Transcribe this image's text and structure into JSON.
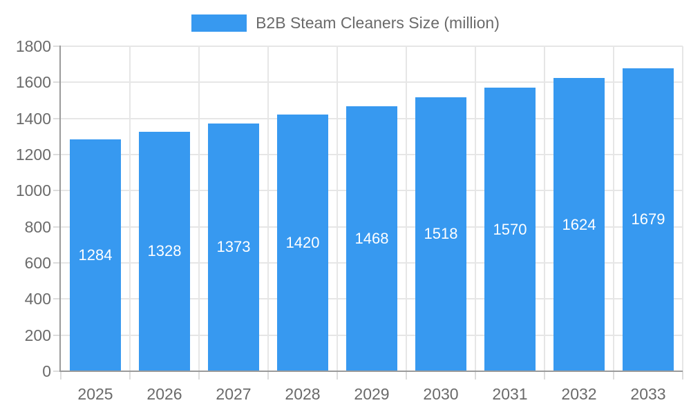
{
  "chart_data": {
    "type": "bar",
    "title": "B2B Steam Cleaners Size (million)",
    "legend": {
      "label": "B2B Steam Cleaners Size (million)",
      "position": "top"
    },
    "categories": [
      "2025",
      "2026",
      "2027",
      "2028",
      "2029",
      "2030",
      "2031",
      "2032",
      "2033"
    ],
    "values": [
      1284,
      1328,
      1373,
      1420,
      1468,
      1518,
      1570,
      1624,
      1679
    ],
    "value_labels": [
      "1284",
      "1328",
      "1373",
      "1420",
      "1468",
      "1518",
      "1570",
      "1624",
      "1679"
    ],
    "ylim": [
      0,
      1800
    ],
    "ytick_step": 200,
    "ytick_labels": [
      "0",
      "200",
      "400",
      "600",
      "800",
      "1000",
      "1200",
      "1400",
      "1600",
      "1800"
    ],
    "grid": true,
    "bar_color": "#3799F0",
    "value_label_color": "#FFFFFF",
    "axis_text_color": "#6A6A6A"
  }
}
